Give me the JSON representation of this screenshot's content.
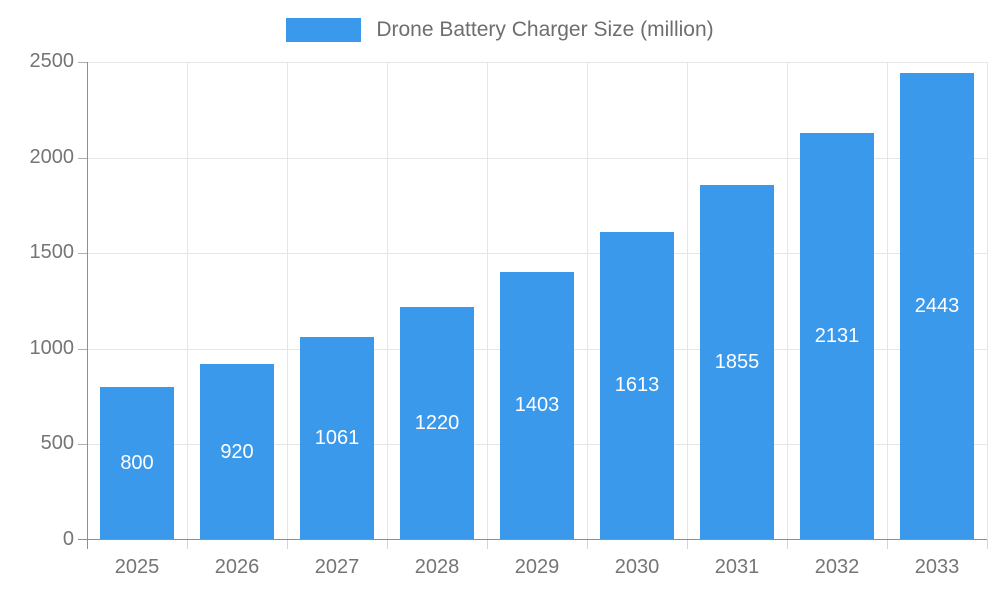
{
  "chart_data": {
    "type": "bar",
    "title": "Drone Battery Charger Size (million)",
    "legend": "Drone Battery Charger Size (million)",
    "legend_position": "top",
    "categories": [
      "2025",
      "2026",
      "2027",
      "2028",
      "2029",
      "2030",
      "2031",
      "2032",
      "2033"
    ],
    "values": [
      800,
      920,
      1061,
      1220,
      1403,
      1613,
      1855,
      2131,
      2443
    ],
    "xlabel": "",
    "ylabel": "",
    "ylim": [
      0,
      2500
    ],
    "yticks": [
      0,
      500,
      1000,
      1500,
      2000,
      2500
    ],
    "grid": true,
    "bar_color": "#3b99ec",
    "value_label_color": "#ffffff",
    "axis_label_color": "#757575",
    "gridline_color": "#e6e6e6",
    "axis_line_color": "#8f8f8f"
  }
}
